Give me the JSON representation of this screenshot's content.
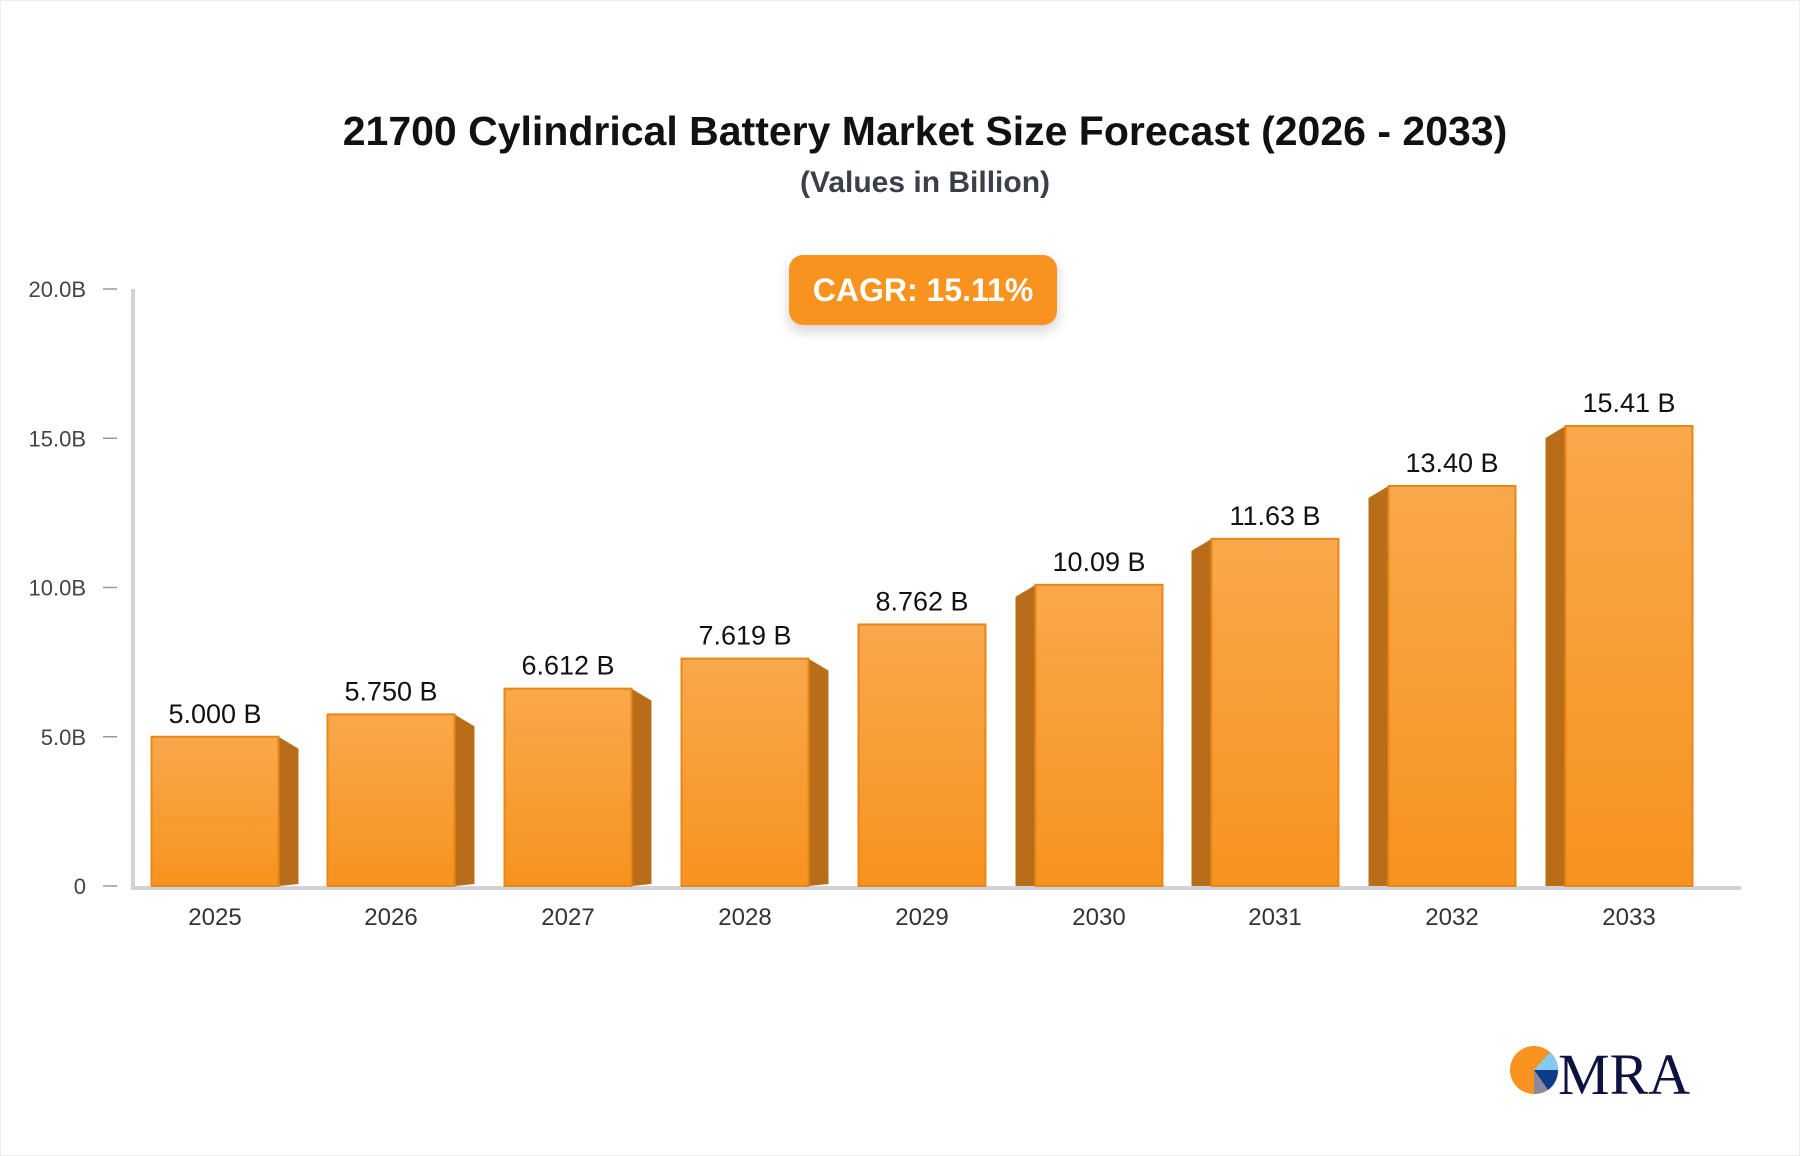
{
  "chart_data": {
    "type": "bar",
    "title": "21700 Cylindrical Battery Market Size Forecast (2026 - 2033)",
    "subtitle": "(Values in Billion)",
    "annotation": "CAGR: 15.11%",
    "categories": [
      "2025",
      "2026",
      "2027",
      "2028",
      "2029",
      "2030",
      "2031",
      "2032",
      "2033"
    ],
    "values": [
      5.0,
      5.75,
      6.612,
      7.619,
      8.762,
      10.09,
      11.63,
      13.4,
      15.41
    ],
    "value_labels": [
      "5.000 B",
      "5.750 B",
      "6.612 B",
      "7.619 B",
      "8.762 B",
      "10.09 B",
      "11.63 B",
      "13.40 B",
      "15.41 B"
    ],
    "ylim": [
      0,
      20
    ],
    "yticks": [
      0,
      5,
      10,
      15,
      20
    ],
    "ytick_labels": [
      "0",
      "5.0B",
      "10.0B",
      "15.0B",
      "20.0B"
    ],
    "xlabel": "",
    "ylabel": "",
    "grid": false,
    "colors": {
      "bar_top": "#f8a84c",
      "bar_bottom": "#f7931e",
      "bar_side": "#b96d18",
      "axis": "#d0d3da",
      "cagr_bg": "#f7931e"
    }
  },
  "logo": {
    "text": "MRA"
  }
}
